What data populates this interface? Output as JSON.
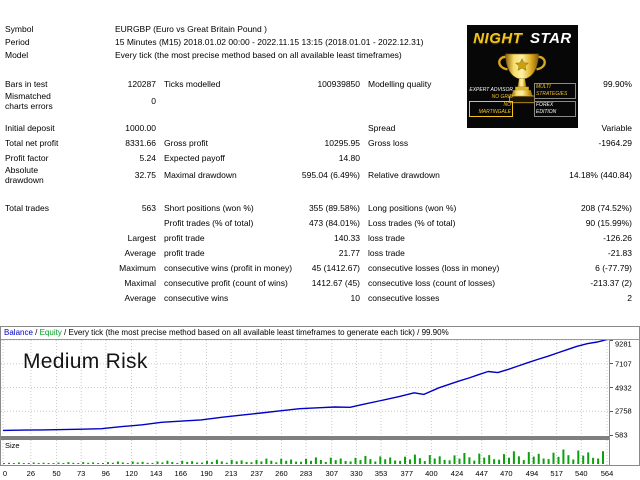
{
  "colors": {
    "balance_blue": "#0000C8",
    "equity_green": "#00A023",
    "bar_green": "#0CA00C",
    "grid_gray": "#C9C9C9",
    "divider_gray": "#7F7F7F",
    "logo_gold": "#F2C41D"
  },
  "report": {
    "rows": [
      {
        "type": "info",
        "label": "Symbol",
        "value": "EURGBP (Euro vs Great Britain Pound )"
      },
      {
        "type": "info",
        "label": "Period",
        "value": "15 Minutes (M15) 2018.01.02 00:00 - 2022.11.15 13:15 (2018.01.01 - 2022.12.31)"
      },
      {
        "type": "info",
        "label": "Model",
        "value": "Every tick (the most precise method based on all available least timeframes)"
      },
      {
        "type": "gap"
      },
      {
        "type": "stat",
        "cells": [
          "Bars in test",
          "120287",
          "Ticks modelled",
          "100939850",
          "Modelling quality",
          "99.90%"
        ]
      },
      {
        "type": "stat",
        "cells": [
          "Mismatched charts errors",
          "0",
          "",
          "",
          "",
          ""
        ]
      },
      {
        "type": "gap",
        "small": true
      },
      {
        "type": "stat",
        "cells": [
          "Initial deposit",
          "1000.00",
          "",
          "",
          "Spread",
          "Variable"
        ]
      },
      {
        "type": "stat",
        "cells": [
          "Total net profit",
          "8331.66",
          "Gross profit",
          "10295.95",
          "Gross loss",
          "-1964.29"
        ]
      },
      {
        "type": "stat",
        "cells": [
          "Profit factor",
          "5.24",
          "Expected payoff",
          "14.80",
          "",
          ""
        ]
      },
      {
        "type": "stat",
        "cells": [
          "Absolute drawdown",
          "32.75",
          "Maximal drawdown",
          "595.04 (6.49%)",
          "Relative drawdown",
          "14.18% (440.84)"
        ]
      },
      {
        "type": "gap"
      },
      {
        "type": "stat",
        "cells": [
          "Total trades",
          "563",
          "Short positions (won %)",
          "355 (89.58%)",
          "Long positions (won %)",
          "208 (74.52%)"
        ]
      },
      {
        "type": "stat",
        "cells": [
          "",
          "",
          "Profit trades (% of total)",
          "473 (84.01%)",
          "Loss trades (% of total)",
          "90 (15.99%)"
        ]
      },
      {
        "type": "stat",
        "cells": [
          "",
          "Largest",
          "profit trade",
          "140.33",
          "loss trade",
          "-126.26"
        ]
      },
      {
        "type": "stat",
        "cells": [
          "",
          "Average",
          "profit trade",
          "21.77",
          "loss trade",
          "-21.83"
        ]
      },
      {
        "type": "stat",
        "cells": [
          "",
          "Maximum",
          "consecutive wins (profit in money)",
          "45 (1412.67)",
          "consecutive losses (loss in money)",
          "6 (-77.79)"
        ]
      },
      {
        "type": "stat",
        "cells": [
          "",
          "Maximal",
          "consecutive profit (count of wins)",
          "1412.67 (45)",
          "consecutive loss (count of losses)",
          "-213.37 (2)"
        ]
      },
      {
        "type": "stat",
        "cells": [
          "",
          "Average",
          "consecutive wins",
          "10",
          "consecutive losses",
          "2"
        ]
      }
    ]
  },
  "logo": {
    "title_part1": "NIGHT",
    "title_part2": "STAR",
    "badges_left": [
      "EXPERT ADVISOR",
      "NO GRID",
      "NO MARTINGALE"
    ],
    "badges_right": [
      "MULTI STRATEGIES",
      "FOREX EDITION"
    ]
  },
  "chart_data": {
    "type": "line",
    "annotation": "Medium Risk",
    "legend": {
      "balance": "Balance",
      "equity": "Equity",
      "sep": " / ",
      "description": "Every tick (the most precise method based on all available least timeframes to generate each tick)",
      "quality": "99.90%"
    },
    "xlabel": "",
    "ylabel": "",
    "x_ticks": [
      0,
      26,
      50,
      73,
      96,
      120,
      143,
      166,
      190,
      213,
      237,
      260,
      283,
      307,
      330,
      353,
      377,
      400,
      424,
      447,
      470,
      494,
      517,
      540,
      564
    ],
    "y_ticks": [
      9281,
      7107,
      4932,
      2758,
      583
    ],
    "ylim": [
      583,
      9281
    ],
    "xlim": [
      0,
      564
    ],
    "grid": true,
    "legend_position": "top",
    "series": [
      {
        "name": "Balance",
        "color": "#0000C8",
        "points": [
          [
            0,
            1000
          ],
          [
            20,
            1030
          ],
          [
            37,
            1050
          ],
          [
            74,
            1110
          ],
          [
            92,
            1160
          ],
          [
            111,
            1350
          ],
          [
            130,
            1520
          ],
          [
            148,
            1750
          ],
          [
            167,
            1860
          ],
          [
            185,
            1970
          ],
          [
            204,
            2200
          ],
          [
            222,
            2400
          ],
          [
            241,
            2600
          ],
          [
            259,
            2800
          ],
          [
            277,
            2990
          ],
          [
            296,
            3080
          ],
          [
            310,
            3150
          ],
          [
            324,
            3120
          ],
          [
            337,
            3400
          ],
          [
            351,
            3700
          ],
          [
            370,
            4100
          ],
          [
            384,
            4450
          ],
          [
            393,
            4300
          ],
          [
            407,
            4900
          ],
          [
            416,
            5200
          ],
          [
            425,
            5500
          ],
          [
            435,
            5800
          ],
          [
            444,
            6100
          ],
          [
            453,
            6400
          ],
          [
            462,
            6300
          ],
          [
            472,
            6600
          ],
          [
            481,
            6900
          ],
          [
            490,
            7200
          ],
          [
            499,
            7500
          ],
          [
            509,
            7800
          ],
          [
            518,
            8100
          ],
          [
            527,
            8400
          ],
          [
            536,
            8700
          ],
          [
            546,
            8950
          ],
          [
            555,
            9100
          ],
          [
            559,
            9200
          ],
          [
            564,
            9331
          ]
        ]
      }
    ],
    "size_chart": {
      "type": "bar",
      "label": "Size",
      "bar_color": "#0CA00C",
      "note": "per-trade lot size histogram, heights grow toward recent trades (approximation)",
      "approx_pattern": [
        0.35,
        0.8,
        0.5,
        1.0,
        0.6,
        0.3,
        0.9,
        0.55,
        0.75,
        0.4
      ],
      "count": 122,
      "min_height": 1.5,
      "max_height": 16,
      "growth_exponent": 1.6
    }
  }
}
